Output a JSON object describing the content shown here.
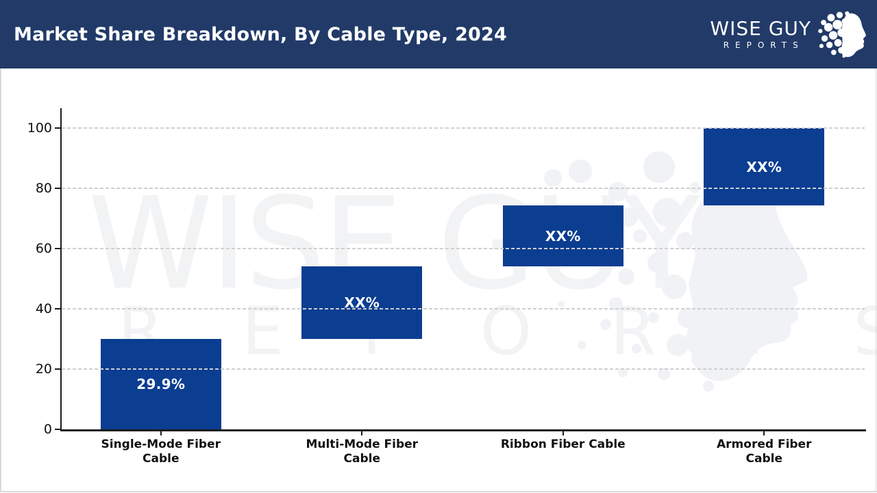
{
  "header": {
    "title": "Market Share Breakdown, By Cable Type, 2024",
    "logo": {
      "line1": "WISE GUY",
      "line2": "REPORTS"
    }
  },
  "watermark": {
    "line1": "WISE GUY",
    "line2": "R E P O R T S"
  },
  "chart_data": {
    "type": "bar",
    "subtype": "waterfall-stacked-market-share",
    "title": "Market Share Breakdown, By Cable Type, 2024",
    "xlabel": "",
    "ylabel": "",
    "categories": [
      "Single-Mode Fiber Cable",
      "Multi-Mode Fiber Cable",
      "Ribbon Fiber Cable",
      "Armored Fiber Cable"
    ],
    "category_lines": [
      [
        "Single-Mode Fiber",
        "Cable"
      ],
      [
        "Multi-Mode Fiber",
        "Cable"
      ],
      [
        "Ribbon Fiber Cable"
      ],
      [
        "Armored Fiber",
        "Cable"
      ]
    ],
    "segments": [
      {
        "start": 0,
        "end": 29.9,
        "label": "29.9%"
      },
      {
        "start": 29.9,
        "end": 54,
        "label": "XX%"
      },
      {
        "start": 54,
        "end": 74.3,
        "label": "XX%"
      },
      {
        "start": 74.3,
        "end": 100,
        "label": "XX%"
      }
    ],
    "yticks": [
      0,
      20,
      40,
      60,
      80,
      100
    ],
    "ylim": [
      0,
      106.6
    ],
    "grid": "horizontal-dashed",
    "legend": "none",
    "bar_color": "#0b3d91",
    "header_color": "#213a68",
    "gridline_color": "#cfcfcf",
    "label_color_inside_bars": "#ffffff"
  }
}
